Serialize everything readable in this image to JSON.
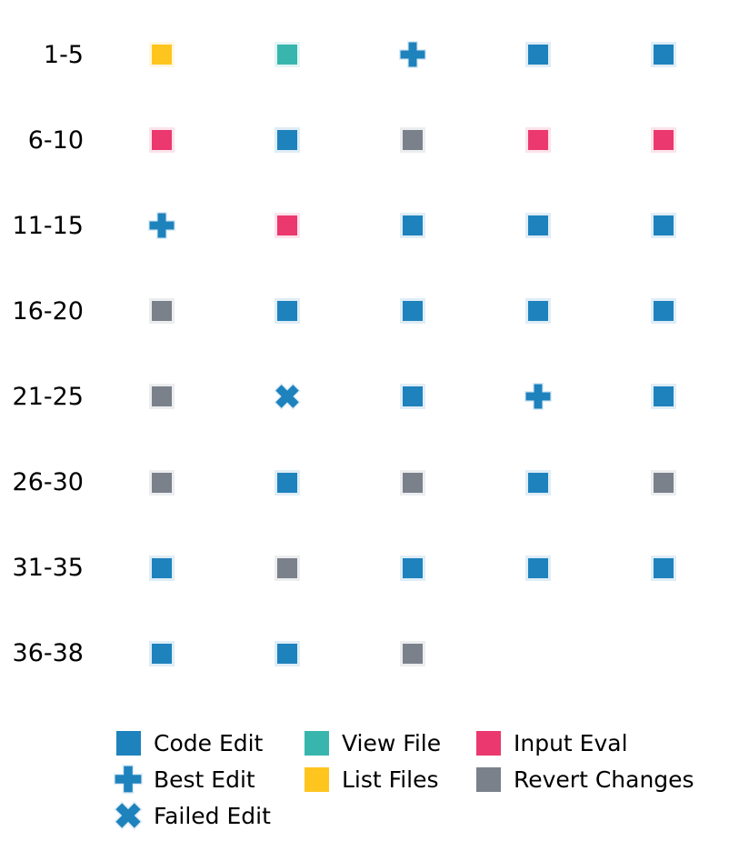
{
  "chart_data": {
    "type": "scatter",
    "title": "",
    "xlabel": "",
    "ylabel": "",
    "grid": "off",
    "background": "#ffffff",
    "text_color": "#000000",
    "legend_position": "bottom",
    "row_labels": [
      "1-5",
      "6-10",
      "11-15",
      "16-20",
      "21-25",
      "26-30",
      "31-35",
      "36-38"
    ],
    "columns_per_row": 5,
    "rows": [
      [
        "list_files",
        "view_file",
        "best_edit",
        "code_edit",
        "code_edit"
      ],
      [
        "input_eval",
        "code_edit",
        "revert_changes",
        "input_eval",
        "input_eval"
      ],
      [
        "best_edit",
        "input_eval",
        "code_edit",
        "code_edit",
        "code_edit"
      ],
      [
        "revert_changes",
        "code_edit",
        "code_edit",
        "code_edit",
        "code_edit"
      ],
      [
        "revert_changes",
        "failed_edit",
        "code_edit",
        "best_edit",
        "code_edit"
      ],
      [
        "revert_changes",
        "code_edit",
        "revert_changes",
        "code_edit",
        "revert_changes"
      ],
      [
        "code_edit",
        "revert_changes",
        "code_edit",
        "code_edit",
        "code_edit"
      ],
      [
        "code_edit",
        "code_edit",
        "revert_changes",
        null,
        null
      ]
    ],
    "marker_types": {
      "code_edit": {
        "label": "Code Edit",
        "shape": "square",
        "color": "#1E82BD"
      },
      "view_file": {
        "label": "View File",
        "shape": "square",
        "color": "#38B6AE"
      },
      "input_eval": {
        "label": "Input Eval",
        "shape": "square",
        "color": "#EB386F"
      },
      "best_edit": {
        "label": "Best Edit",
        "shape": "plus",
        "color": "#1E82BD"
      },
      "list_files": {
        "label": "List Files",
        "shape": "square",
        "color": "#FFC51F"
      },
      "revert_changes": {
        "label": "Revert Changes",
        "shape": "square",
        "color": "#7A818B"
      },
      "failed_edit": {
        "label": "Failed Edit",
        "shape": "cross",
        "color": "#1E82BD"
      }
    },
    "legend": [
      [
        "code_edit",
        "view_file",
        "input_eval"
      ],
      [
        "best_edit",
        "list_files",
        "revert_changes"
      ],
      [
        "failed_edit"
      ]
    ]
  }
}
